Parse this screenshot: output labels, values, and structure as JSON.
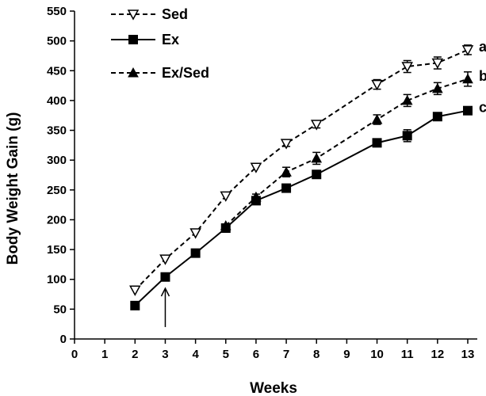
{
  "chart_data": {
    "type": "line",
    "xlabel": "Weeks",
    "ylabel": "Body Weight Gain (g)",
    "xlim": [
      0,
      13
    ],
    "ylim": [
      0,
      550
    ],
    "x_ticks": [
      0,
      1,
      2,
      3,
      4,
      5,
      6,
      7,
      8,
      9,
      10,
      11,
      12,
      13
    ],
    "y_ticks": [
      0,
      50,
      100,
      150,
      200,
      250,
      300,
      350,
      400,
      450,
      500,
      550
    ],
    "grid": false,
    "legend_position": "top-left",
    "series": [
      {
        "name": "Sed",
        "marker": "open-triangle-down",
        "line_style": "dashed",
        "x": [
          2,
          3,
          4,
          5,
          6,
          7,
          8,
          10,
          11,
          12,
          13
        ],
        "values": [
          82,
          134,
          178,
          240,
          288,
          328,
          360,
          427,
          457,
          463,
          485
        ],
        "errors": [
          0,
          0,
          0,
          0,
          0,
          5,
          6,
          8,
          10,
          10,
          8
        ],
        "significance_label": "a"
      },
      {
        "name": "Ex",
        "marker": "filled-square",
        "line_style": "solid",
        "x": [
          2,
          3,
          4,
          5,
          6,
          7,
          8,
          10,
          11,
          12,
          13
        ],
        "values": [
          56,
          104,
          144,
          186,
          232,
          253,
          276,
          329,
          341,
          373,
          383
        ],
        "errors": [
          0,
          0,
          0,
          5,
          5,
          4,
          4,
          4,
          10,
          5,
          4
        ],
        "significance_label": "c"
      },
      {
        "name": "Ex/Sed",
        "marker": "filled-triangle-up",
        "line_style": "dashed",
        "x": [
          5,
          6,
          7,
          8,
          10,
          11,
          12,
          13
        ],
        "values": [
          190,
          238,
          280,
          303,
          368,
          400,
          420,
          436
        ],
        "errors": [
          0,
          5,
          8,
          10,
          8,
          10,
          10,
          12
        ],
        "significance_label": "b"
      }
    ],
    "annotations": [
      {
        "type": "arrow",
        "x": 3,
        "y_from": 20,
        "y_to": 85
      }
    ]
  }
}
